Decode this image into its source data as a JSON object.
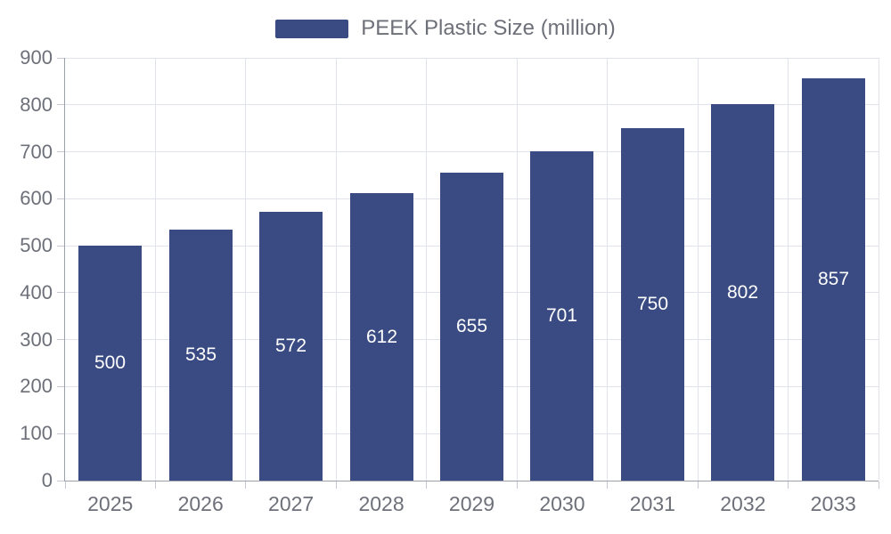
{
  "chart_data": {
    "type": "bar",
    "title": "PEEK Plastic Size (million)",
    "categories": [
      "2025",
      "2026",
      "2027",
      "2028",
      "2029",
      "2030",
      "2031",
      "2032",
      "2033"
    ],
    "series": [
      {
        "name": "PEEK Plastic Size (million)",
        "values": [
          500,
          535,
          572,
          612,
          655,
          701,
          750,
          802,
          857
        ]
      }
    ],
    "xlabel": "",
    "ylabel": "",
    "ylim": [
      0,
      900
    ],
    "yticks": [
      0,
      100,
      200,
      300,
      400,
      500,
      600,
      700,
      800,
      900
    ],
    "grid": true,
    "legend_position": "top",
    "bar_labels_inside": true
  },
  "colors": {
    "bar": "#394B82",
    "bar_label": "#ffffff",
    "axis_text": "#6E7079",
    "grid_line": "#E0E3EB",
    "axis_line": "#9CA0A8",
    "tick": "#C6C9D1",
    "background": "#ffffff"
  }
}
